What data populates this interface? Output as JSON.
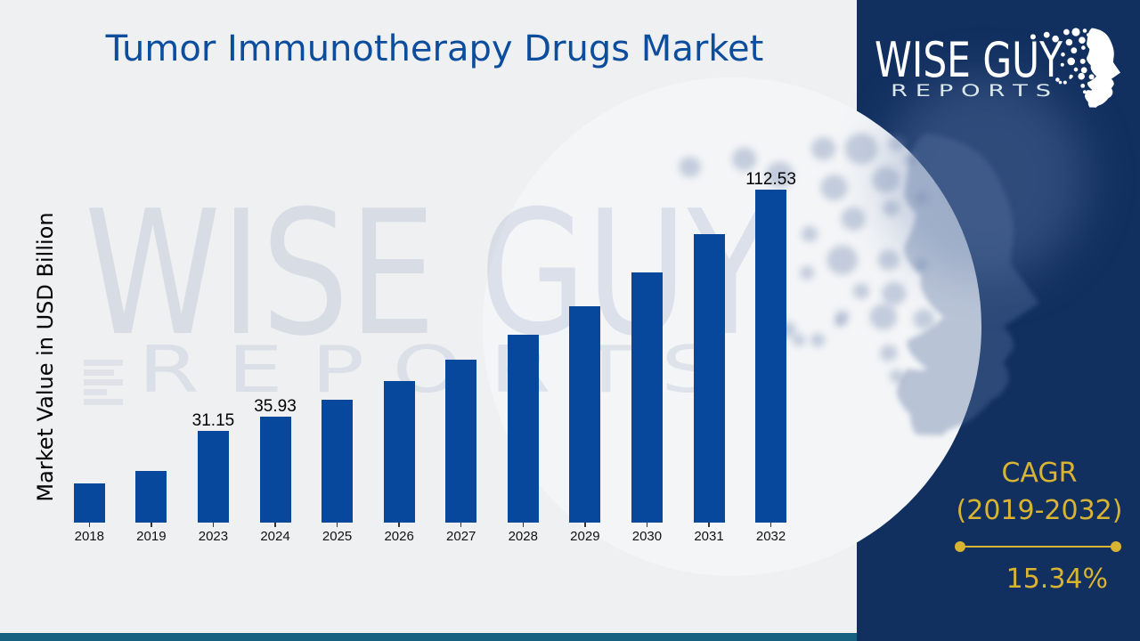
{
  "title": "Tumor Immunotherapy Drugs Market",
  "brand": {
    "line1": "WISE GUY",
    "line2": "REPORTS"
  },
  "watermark": {
    "line1": "WISE GUY",
    "line2": "REPORTS"
  },
  "cagr": {
    "label": "CAGR",
    "range": "(2019-2032)",
    "value": "15.34%"
  },
  "chart_data": {
    "type": "bar",
    "title": "Tumor Immunotherapy Drugs Market",
    "xlabel": "",
    "ylabel": "Market Value in USD Billion",
    "categories": [
      "2018",
      "2019",
      "2023",
      "2024",
      "2025",
      "2026",
      "2027",
      "2028",
      "2029",
      "2030",
      "2031",
      "2032"
    ],
    "values": [
      13.4,
      17.6,
      31.15,
      35.93,
      41.44,
      47.8,
      55.13,
      63.59,
      73.34,
      84.59,
      97.57,
      112.53
    ],
    "value_labels": {
      "2023": "31.15",
      "2024": "35.93",
      "2032": "112.53"
    },
    "bar_color": "#07479c",
    "ylim": [
      0,
      120
    ],
    "grid": false,
    "legend": false
  },
  "colors": {
    "background": "#eff0f1",
    "panel": "#112f5f",
    "strip": "#176180",
    "accent_gold": "#d9b432",
    "title_blue": "#0d4d9e",
    "bar_blue": "#07479c"
  }
}
